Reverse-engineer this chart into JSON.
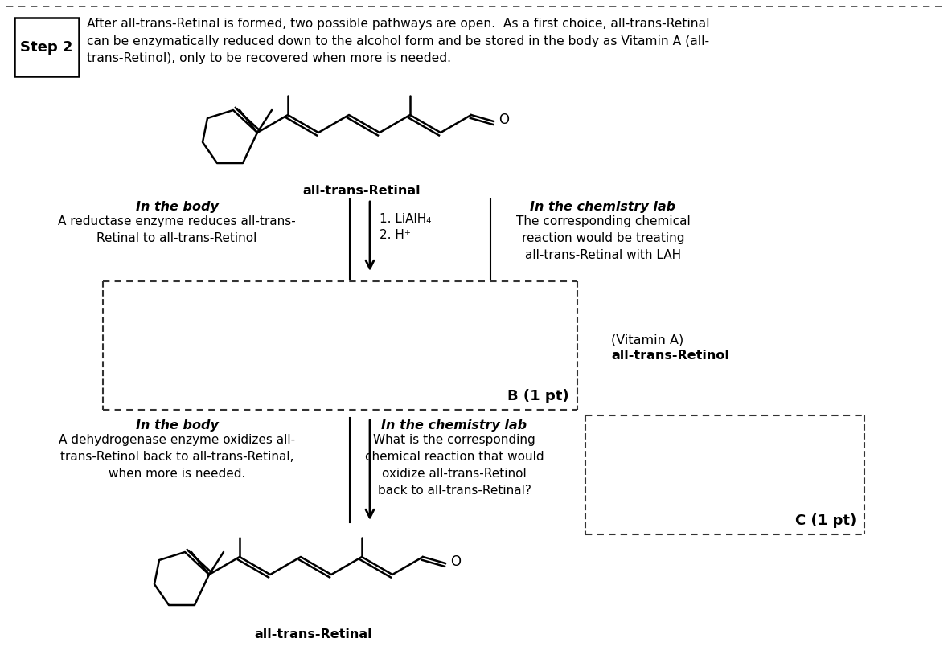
{
  "bg_color": "#ffffff",
  "title_box_text": "Step 2",
  "header_text": "After all-trans-Retinal is formed, two possible pathways are open.  As a first choice, all-trans-Retinal\ncan be enzymatically reduced down to the alcohol form and be stored in the body as Vitamin A (all-\ntrans-Retinol), only to be recovered when more is needed.",
  "mol_label_top": "all-trans-Retinal",
  "mol_label_bottom": "all-trans-Retinal",
  "body_left_1_title": "In the body",
  "body_left_1_text": "A reductase enzyme reduces all-trans-\nRetinal to all-trans-Retinol",
  "rxn_line1": "1. LiAlH₄",
  "rxn_line2": "2. H⁺",
  "chem_lab_1_title": "In the chemistry lab",
  "chem_lab_1_text": "The corresponding chemical\nreaction would be treating\nall-trans-Retinal with LAH",
  "box_B_label": "B (1 pt)",
  "vitamin_label_1": "(Vitamin A)",
  "vitamin_label_2": "all-trans-Retinol",
  "body_left_2_title": "In the body",
  "body_left_2_text": "A dehydrogenase enzyme oxidizes all-\ntrans-Retinol back to all-trans-Retinal,\nwhen more is needed.",
  "chem_lab_2_title": "In the chemistry lab",
  "chem_lab_2_text": "What is the corresponding\nchemical reaction that would\noxidize all-trans-Retinol\nback to all-trans-Retinal?",
  "box_C_label": "C (1 pt)"
}
